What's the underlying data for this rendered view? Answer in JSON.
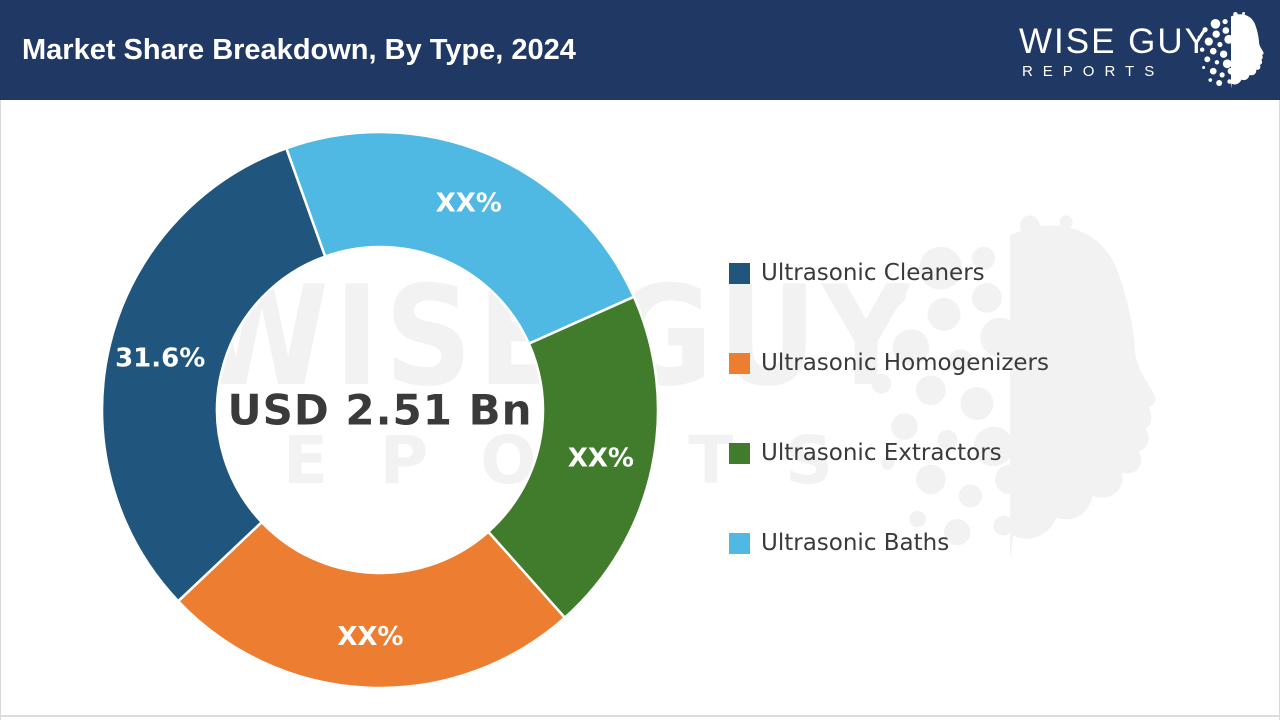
{
  "header": {
    "title": "Market Share Breakdown, By Type, 2024",
    "logo": {
      "line1": "WISE GUY",
      "line2": "REPORTS"
    }
  },
  "watermark": {
    "line1": "WISE GUY",
    "line2": "REPORTS"
  },
  "chart_data": {
    "type": "donut",
    "title": "Market Share Breakdown, By Type, 2024",
    "center_label": "USD 2.51 Bn",
    "start_angle_deg": -19.7,
    "clockwise": true,
    "legend_position": "right",
    "segments": [
      {
        "name": "Ultrasonic Baths",
        "display_label": "XX%",
        "value_pct": 23.8,
        "color": "#4FB9E3"
      },
      {
        "name": "Ultrasonic Extractors",
        "display_label": "XX%",
        "value_pct": 20.1,
        "color": "#417C2D"
      },
      {
        "name": "Ultrasonic Homogenizers",
        "display_label": "XX%",
        "value_pct": 24.5,
        "color": "#ED7D31"
      },
      {
        "name": "Ultrasonic Cleaners",
        "display_label": "31.6%",
        "value_pct": 31.6,
        "color": "#20567D"
      }
    ],
    "legend_order": [
      3,
      2,
      1,
      0
    ]
  },
  "colors": {
    "header_bg": "#203864",
    "header_text": "#FFFFFF",
    "center_text": "#3A3A3A",
    "legend_text": "#3A3A3A",
    "percent_label": "#FFFFFF",
    "watermark": "#F2F2F2",
    "border": "#D9D9D9"
  }
}
